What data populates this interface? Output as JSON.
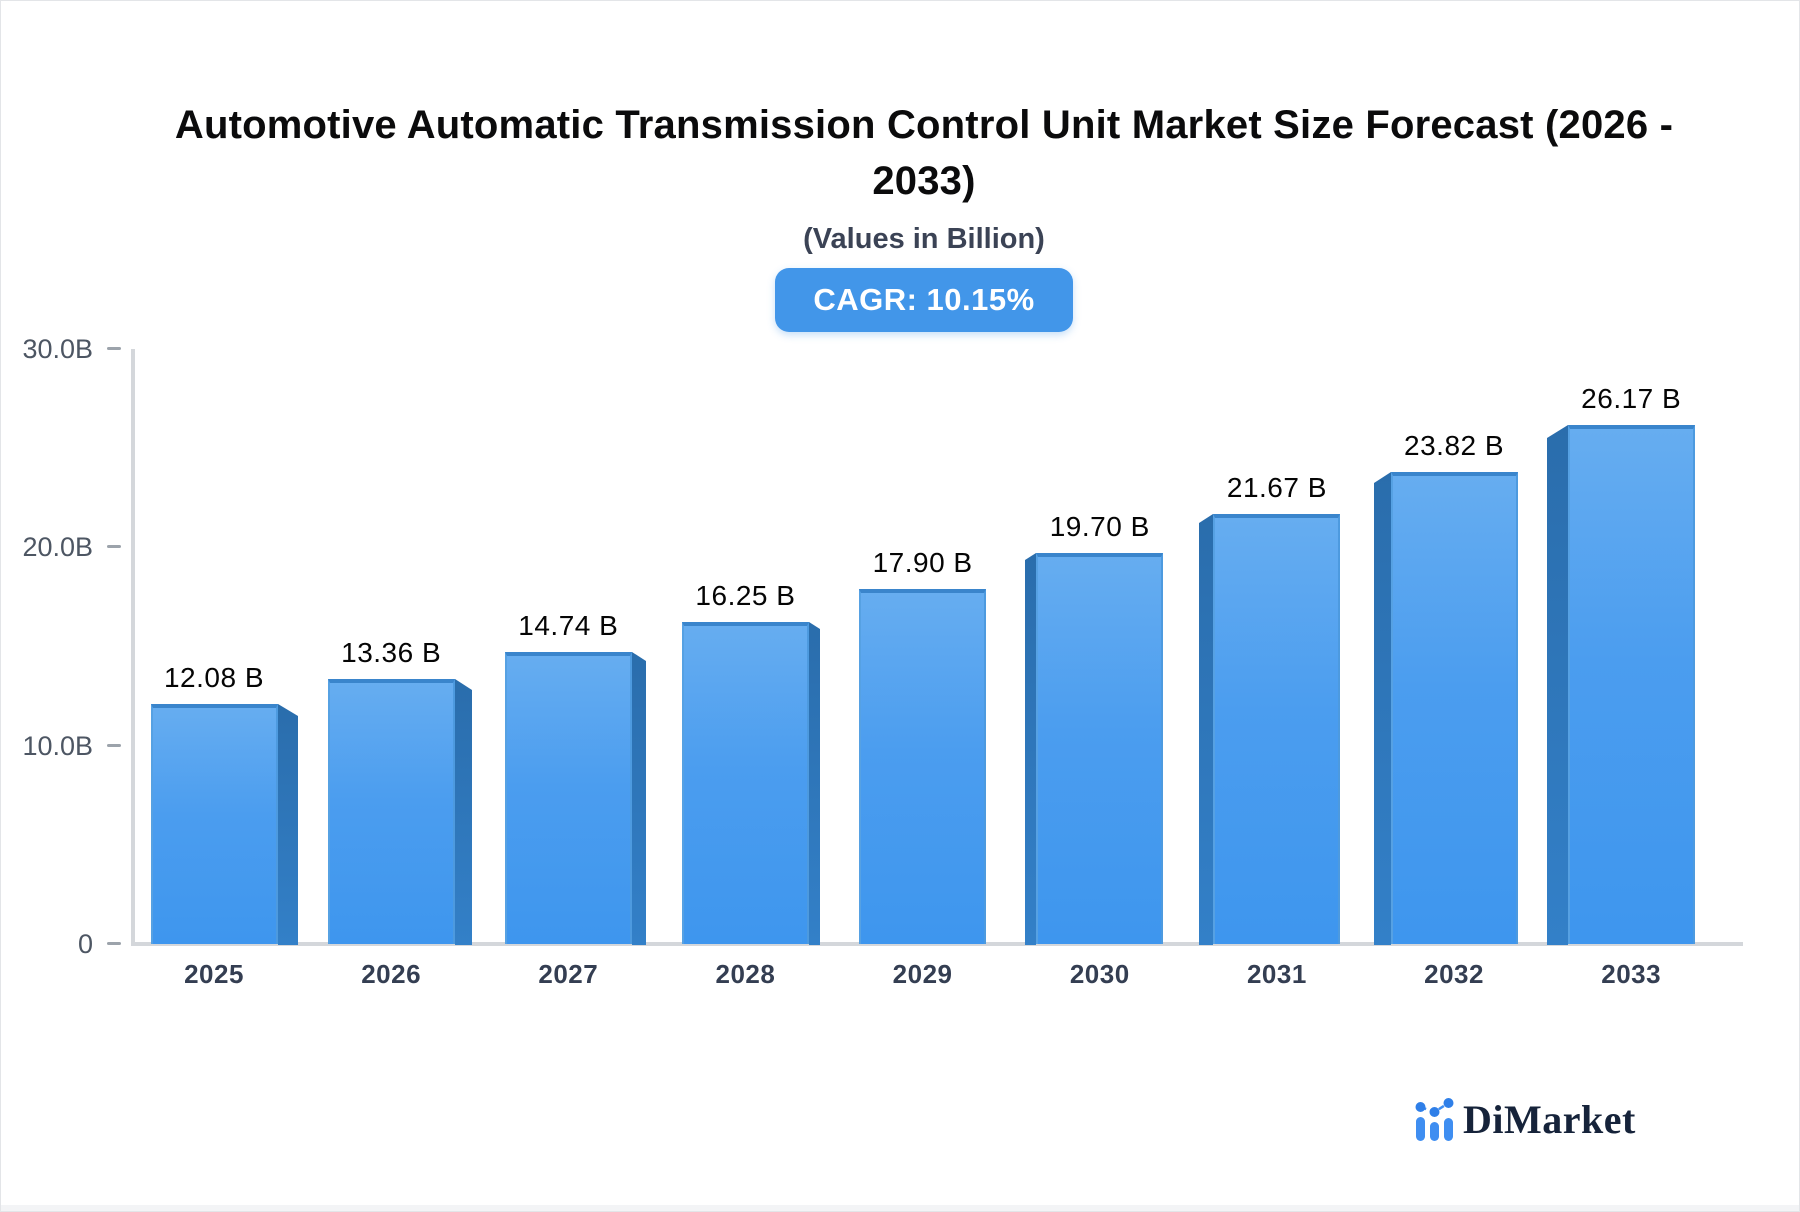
{
  "header": {
    "title_line1": "Automotive Automatic Transmission Control Unit Market Size Forecast (2026 -",
    "title_line2": "2033)",
    "subtitle": "(Values in Billion)",
    "cagr_badge": "CAGR: 10.15%"
  },
  "chart_data": {
    "type": "bar",
    "title": "Automotive Automatic Transmission Control Unit Market Size Forecast (2026 - 2033)",
    "subtitle": "(Values in Billion)",
    "cagr_percent": 10.15,
    "categories": [
      "2025",
      "2026",
      "2027",
      "2028",
      "2029",
      "2030",
      "2031",
      "2032",
      "2033"
    ],
    "values": [
      12.08,
      13.36,
      14.74,
      16.25,
      17.9,
      19.7,
      21.67,
      23.82,
      26.17
    ],
    "value_labels": [
      "12.08 B",
      "13.36 B",
      "14.74 B",
      "16.25 B",
      "17.90 B",
      "19.70 B",
      "21.67 B",
      "23.82 B",
      "26.17 B"
    ],
    "y_ticks": [
      {
        "label": "30.0B",
        "value": 30
      },
      {
        "label": "20.0B",
        "value": 20
      },
      {
        "label": "10.0B",
        "value": 10
      },
      {
        "label": "0",
        "value": 0
      }
    ],
    "ylim": [
      0,
      30
    ],
    "grid": false,
    "legend": false,
    "style_3d": true,
    "bar_face_top_color": "#66adf0",
    "bar_face_bottom_color": "#3e96ee",
    "bar_side_color": "#2e77bd",
    "bar_top_edge_color": "#3a85cc"
  },
  "branding": {
    "logo_text": "DiMarket",
    "logo_icon": "bar-chart-trend-icon",
    "logo_text_color": "#16233a",
    "logo_icon_color": "#3f8ef1"
  }
}
